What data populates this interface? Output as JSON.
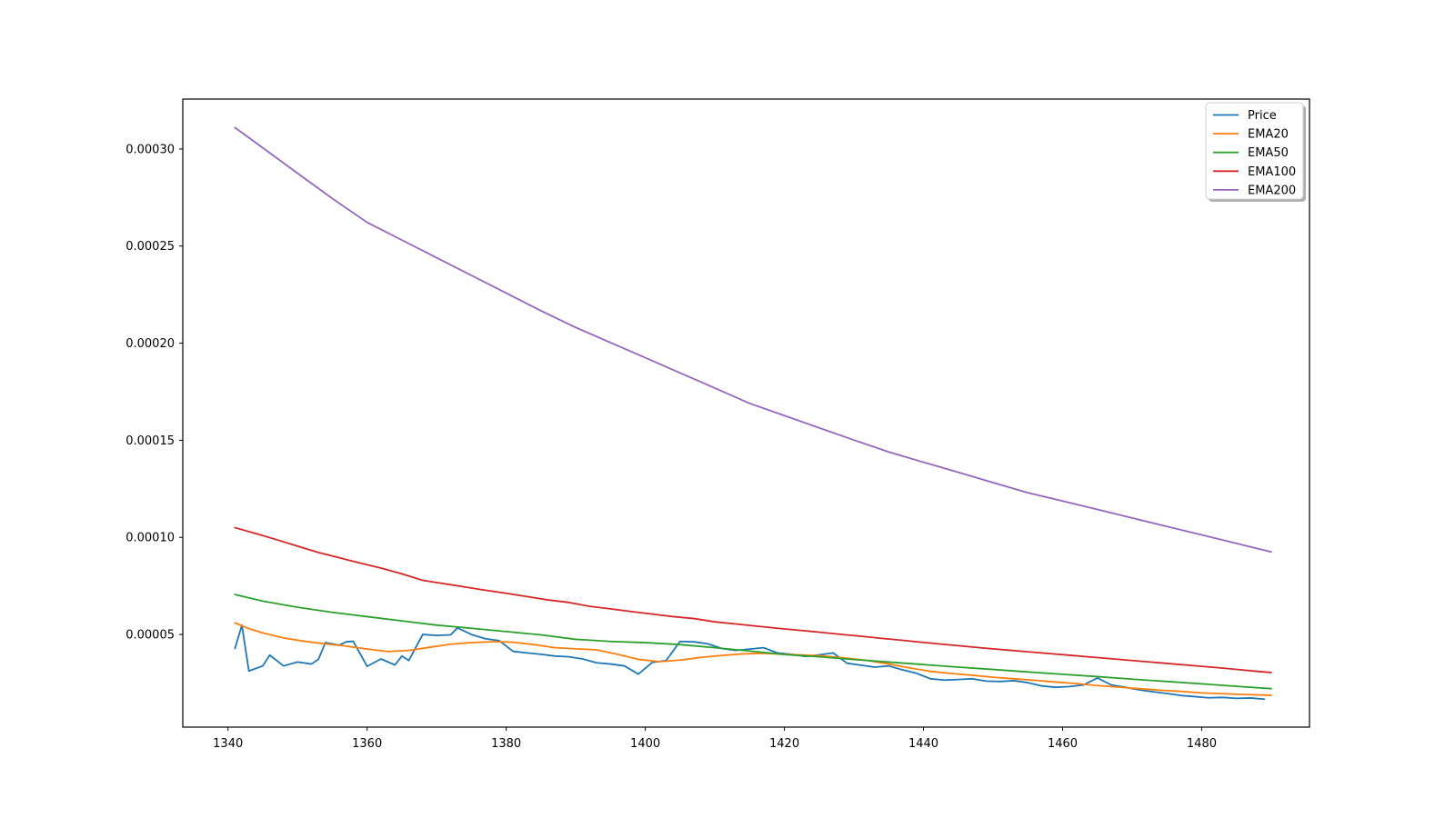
{
  "figure": {
    "background": "#ffffff"
  },
  "chart_data": {
    "type": "line",
    "title": "",
    "xlabel": "",
    "ylabel": "",
    "grid": false,
    "legend_position": "upper right",
    "legend_shadow": true,
    "xlim": [
      1333.5,
      1495.5
    ],
    "ylim": [
      2.3e-06,
      0.0003257
    ],
    "xticks": [
      1340,
      1360,
      1380,
      1400,
      1420,
      1440,
      1460,
      1480
    ],
    "xtick_labels": [
      "1340",
      "1360",
      "1380",
      "1400",
      "1420",
      "1440",
      "1460",
      "1480"
    ],
    "yticks": [
      5e-05,
      0.0001,
      0.00015,
      0.0002,
      0.00025,
      0.0003
    ],
    "ytick_labels": [
      "0.00005",
      "0.00010",
      "0.00015",
      "0.00020",
      "0.00025",
      "0.00030"
    ],
    "series": [
      {
        "name": "Price",
        "color": "#1f77b4",
        "x": [
          1341,
          1342,
          1343,
          1345,
          1346,
          1348,
          1350,
          1352,
          1353,
          1354,
          1356,
          1357,
          1358,
          1360,
          1362,
          1364,
          1365,
          1366,
          1368,
          1370,
          1372,
          1373,
          1375,
          1377,
          1379,
          1381,
          1383,
          1385,
          1387,
          1389,
          1391,
          1393,
          1395,
          1397,
          1399,
          1401,
          1403,
          1405,
          1407,
          1409,
          1411,
          1413,
          1415,
          1417,
          1419,
          1421,
          1423,
          1425,
          1427,
          1429,
          1431,
          1433,
          1435,
          1437,
          1439,
          1441,
          1443,
          1445,
          1447,
          1449,
          1451,
          1453,
          1455,
          1457,
          1459,
          1461,
          1463,
          1465,
          1467,
          1469,
          1471,
          1473,
          1475,
          1477,
          1479,
          1481,
          1483,
          1485,
          1487,
          1489
        ],
        "values": [
          4.28e-05,
          5.48e-05,
          3.12e-05,
          3.38e-05,
          3.94e-05,
          3.38e-05,
          3.58e-05,
          3.48e-05,
          3.72e-05,
          4.58e-05,
          4.45e-05,
          4.62e-05,
          4.65e-05,
          3.36e-05,
          3.74e-05,
          3.43e-05,
          3.89e-05,
          3.66e-05,
          5e-05,
          4.95e-05,
          4.98e-05,
          5.34e-05,
          5e-05,
          4.78e-05,
          4.68e-05,
          4.13e-05,
          4.05e-05,
          3.98e-05,
          3.89e-05,
          3.85e-05,
          3.74e-05,
          3.54e-05,
          3.48e-05,
          3.38e-05,
          2.96e-05,
          3.56e-05,
          3.66e-05,
          4.64e-05,
          4.62e-05,
          4.52e-05,
          4.28e-05,
          4.18e-05,
          4.25e-05,
          4.32e-05,
          4.05e-05,
          3.98e-05,
          3.87e-05,
          3.95e-05,
          4.05e-05,
          3.52e-05,
          3.42e-05,
          3.32e-05,
          3.38e-05,
          3.18e-05,
          3e-05,
          2.72e-05,
          2.65e-05,
          2.68e-05,
          2.72e-05,
          2.6e-05,
          2.58e-05,
          2.62e-05,
          2.52e-05,
          2.35e-05,
          2.28e-05,
          2.32e-05,
          2.4e-05,
          2.76e-05,
          2.4e-05,
          2.28e-05,
          2.15e-05,
          2.05e-05,
          1.96e-05,
          1.86e-05,
          1.8e-05,
          1.74e-05,
          1.76e-05,
          1.71e-05,
          1.73e-05,
          1.67e-05
        ]
      },
      {
        "name": "EMA20",
        "color": "#ff7f0e",
        "x": [
          1341,
          1343,
          1345,
          1348,
          1351,
          1354,
          1357,
          1360,
          1363,
          1366,
          1369,
          1372,
          1375,
          1378,
          1381,
          1384,
          1387,
          1390,
          1393,
          1396,
          1399,
          1402,
          1405,
          1408,
          1411,
          1414,
          1417,
          1420,
          1423,
          1426,
          1429,
          1432,
          1435,
          1438,
          1441,
          1444,
          1447,
          1450,
          1453,
          1456,
          1459,
          1462,
          1465,
          1468,
          1471,
          1474,
          1477,
          1480,
          1483,
          1486,
          1490
        ],
        "values": [
          5.6e-05,
          5.3e-05,
          5.08e-05,
          4.82e-05,
          4.65e-05,
          4.52e-05,
          4.4e-05,
          4.25e-05,
          4.12e-05,
          4.18e-05,
          4.34e-05,
          4.5e-05,
          4.58e-05,
          4.63e-05,
          4.6e-05,
          4.48e-05,
          4.32e-05,
          4.26e-05,
          4.21e-05,
          3.98e-05,
          3.72e-05,
          3.6e-05,
          3.68e-05,
          3.82e-05,
          3.92e-05,
          4e-05,
          4.03e-05,
          3.98e-05,
          3.94e-05,
          3.88e-05,
          3.78e-05,
          3.66e-05,
          3.48e-05,
          3.28e-05,
          3.1e-05,
          2.99e-05,
          2.9e-05,
          2.8e-05,
          2.72e-05,
          2.64e-05,
          2.55e-05,
          2.47e-05,
          2.37e-05,
          2.29e-05,
          2.21e-05,
          2.13e-05,
          2.07e-05,
          1.99e-05,
          1.95e-05,
          1.91e-05,
          1.87e-05
        ]
      },
      {
        "name": "EMA50",
        "color": "#2ca02c",
        "x": [
          1341,
          1345,
          1350,
          1355,
          1360,
          1365,
          1370,
          1375,
          1380,
          1385,
          1390,
          1395,
          1400,
          1405,
          1410,
          1415,
          1420,
          1425,
          1430,
          1435,
          1440,
          1445,
          1450,
          1455,
          1460,
          1465,
          1470,
          1475,
          1480,
          1485,
          1490
        ],
        "values": [
          7.06e-05,
          6.72e-05,
          6.4e-05,
          6.14e-05,
          5.92e-05,
          5.7e-05,
          5.48e-05,
          5.32e-05,
          5.15e-05,
          4.98e-05,
          4.75e-05,
          4.64e-05,
          4.58e-05,
          4.48e-05,
          4.32e-05,
          4.15e-05,
          3.97e-05,
          3.85e-05,
          3.71e-05,
          3.58e-05,
          3.45e-05,
          3.32e-05,
          3.2e-05,
          3.07e-05,
          2.95e-05,
          2.83e-05,
          2.7e-05,
          2.58e-05,
          2.46e-05,
          2.33e-05,
          2.21e-05
        ]
      },
      {
        "name": "EMA100",
        "color": "#d62728",
        "x": [
          1341,
          1344,
          1347,
          1350,
          1353,
          1356,
          1359,
          1362,
          1365,
          1368,
          1371,
          1374,
          1377,
          1380,
          1383,
          1386,
          1389,
          1392,
          1395,
          1398,
          1401,
          1404,
          1407,
          1410,
          1413,
          1416,
          1419,
          1422,
          1425,
          1428,
          1431,
          1434,
          1437,
          1440,
          1443,
          1446,
          1449,
          1452,
          1455,
          1458,
          1461,
          1464,
          1467,
          1470,
          1473,
          1476,
          1479,
          1482,
          1485,
          1488,
          1490
        ],
        "values": [
          0.000105,
          0.000102,
          9.88e-05,
          9.55e-05,
          9.22e-05,
          8.95e-05,
          8.68e-05,
          8.42e-05,
          8.12e-05,
          7.79e-05,
          7.62e-05,
          7.45e-05,
          7.28e-05,
          7.12e-05,
          6.95e-05,
          6.78e-05,
          6.65e-05,
          6.45e-05,
          6.32e-05,
          6.18e-05,
          6.05e-05,
          5.92e-05,
          5.82e-05,
          5.65e-05,
          5.54e-05,
          5.43e-05,
          5.32e-05,
          5.22e-05,
          5.12e-05,
          5.01e-05,
          4.91e-05,
          4.8e-05,
          4.7e-05,
          4.59e-05,
          4.49e-05,
          4.39e-05,
          4.29e-05,
          4.2e-05,
          4.11e-05,
          4.02e-05,
          3.93e-05,
          3.84e-05,
          3.75e-05,
          3.66e-05,
          3.57e-05,
          3.48e-05,
          3.39e-05,
          3.3e-05,
          3.2e-05,
          3.1e-05,
          3.04e-05
        ]
      },
      {
        "name": "EMA200",
        "color": "#9467bd",
        "x": [
          1341,
          1345,
          1350,
          1355,
          1360,
          1365,
          1370,
          1375,
          1380,
          1385,
          1390,
          1395,
          1400,
          1405,
          1410,
          1415,
          1420,
          1425,
          1430,
          1435,
          1440,
          1445,
          1450,
          1455,
          1460,
          1465,
          1470,
          1475,
          1480,
          1485,
          1490
        ],
        "values": [
          0.000311,
          0.0003006,
          0.0002875,
          0.0002745,
          0.0002622,
          0.0002531,
          0.000244,
          0.0002349,
          0.0002258,
          0.0002167,
          0.0002081,
          0.0002003,
          0.0001925,
          0.0001847,
          0.0001769,
          0.000169,
          0.0001627,
          0.0001564,
          0.0001501,
          0.000144,
          0.0001387,
          0.0001335,
          0.0001282,
          0.000123,
          0.0001187,
          0.0001144,
          0.00011,
          0.0001056,
          0.0001013,
          9.69e-05,
          9.25e-05
        ]
      }
    ]
  },
  "legend": {
    "entries": [
      {
        "label": "Price",
        "color": "#1f77b4"
      },
      {
        "label": "EMA20",
        "color": "#ff7f0e"
      },
      {
        "label": "EMA50",
        "color": "#2ca02c"
      },
      {
        "label": "EMA100",
        "color": "#d62728"
      },
      {
        "label": "EMA200",
        "color": "#9467bd"
      }
    ]
  },
  "style": {
    "spine_color": "#000000",
    "tick_color": "#000000",
    "legend_edge_color": "#cccccc",
    "legend_shadow_color": "#b0b0b0",
    "line_width": 1.8
  }
}
